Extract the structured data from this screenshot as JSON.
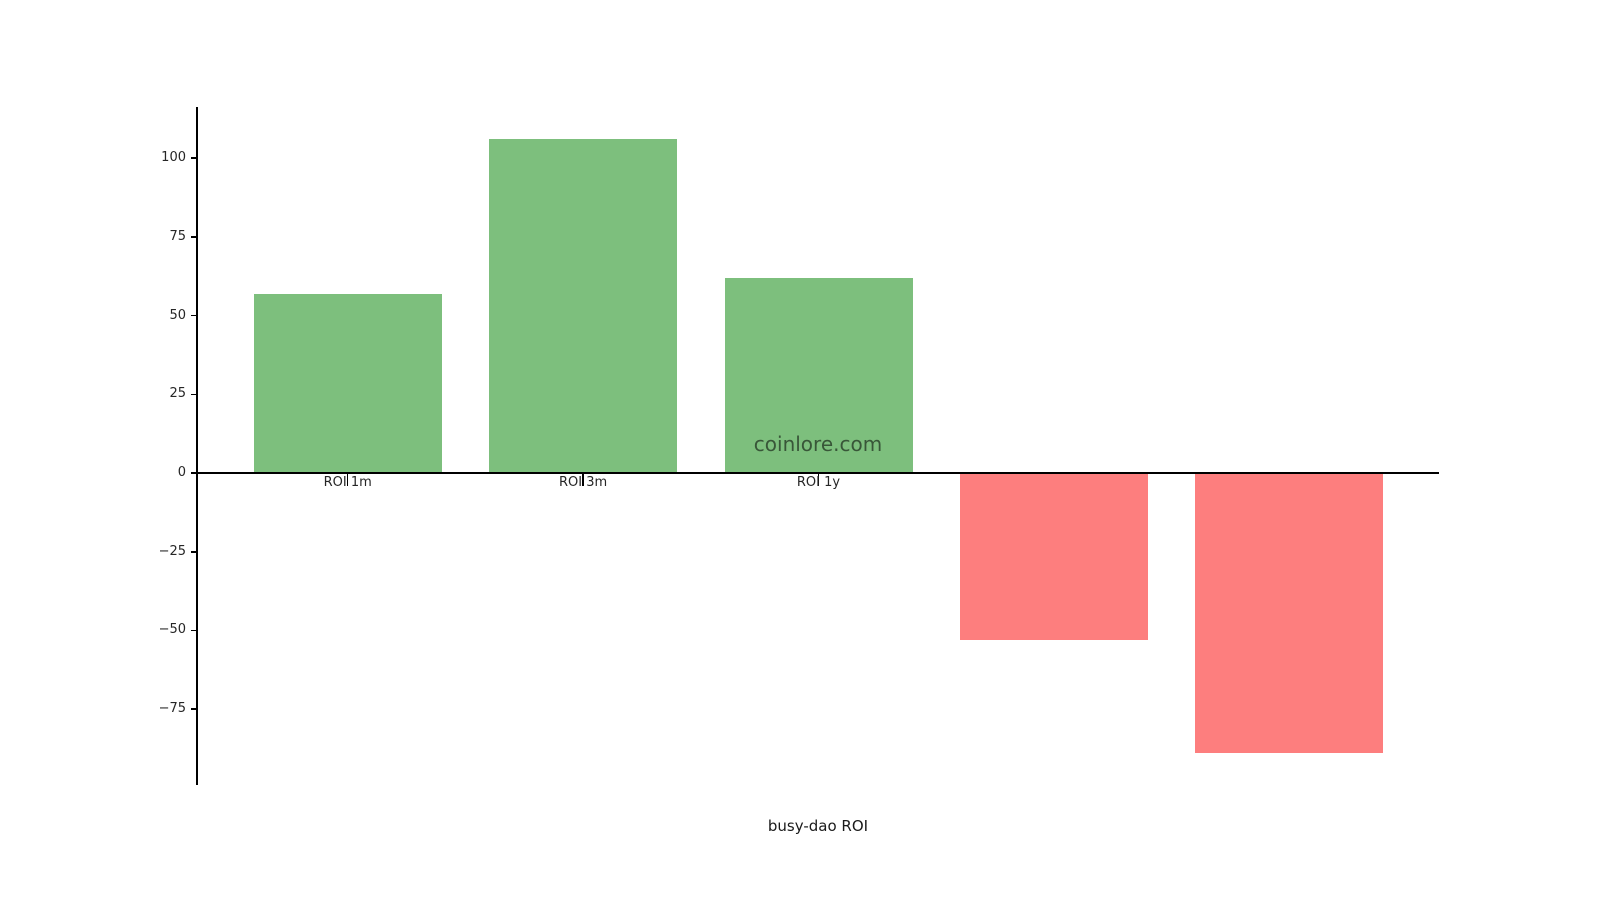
{
  "page": {
    "background_color": "#ffffff"
  },
  "watermark": {
    "text": "coinlore.com"
  },
  "chart_data": {
    "type": "bar",
    "title": "busy-dao ROI",
    "title_position": "bottom-center",
    "categories": [
      "ROI 1m",
      "ROI 3m",
      "ROI 1y",
      "",
      ""
    ],
    "values": [
      57,
      106,
      62,
      -53,
      -89
    ],
    "bar_colors": [
      "#7dbf7d",
      "#7dbf7d",
      "#7dbf7d",
      "#fd7e7e",
      "#fd7e7e"
    ],
    "positive_color": "#7dbf7d",
    "negative_color": "#fd7e7e",
    "yticks": [
      100,
      75,
      50,
      25,
      0,
      -25,
      -50,
      -75
    ],
    "ylim": [
      -99,
      116
    ],
    "xlabel": "",
    "ylabel": "",
    "grid": false,
    "legend": null,
    "axis_color": "#000000",
    "tick_label_color": "#262626",
    "note_hidden_labels": "x tick labels of the two negative bars are covered by the red bars"
  }
}
